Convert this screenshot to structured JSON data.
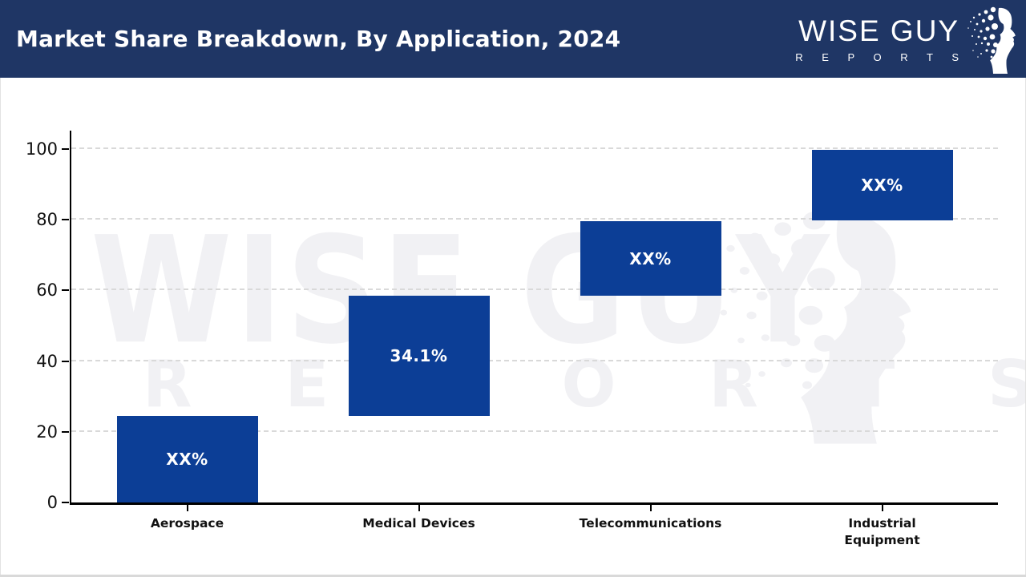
{
  "header": {
    "title": "Market Share Breakdown, By Application, 2024",
    "brand": {
      "wordmark": "WISE GUY",
      "reports": "R E P O R T S"
    }
  },
  "watermark": {
    "wordmark": "WISE GUY",
    "reports": "R E P O R T S"
  },
  "colors": {
    "header_bg": "#1f3665",
    "bar": "#0c3e96",
    "grid": "#d9d9d9",
    "watermark": "#f1f1f4",
    "bar_label": "#ffffff",
    "axis_text": "#111111"
  },
  "chart_data": {
    "type": "bar",
    "subtype": "floating-waterfall",
    "title": "Market Share Breakdown, By Application, 2024",
    "categories": [
      "Aerospace",
      "Medical Devices",
      "Telecommunications",
      "Industrial Equipment"
    ],
    "bars": [
      {
        "category": "Aerospace",
        "category_lines": [
          "Aerospace"
        ],
        "start": 0,
        "end": 24.5,
        "value": 24.5,
        "label": "XX%"
      },
      {
        "category": "Medical Devices",
        "category_lines": [
          "Medical Devices"
        ],
        "start": 24.5,
        "end": 58.6,
        "value": 34.1,
        "label": "34.1%"
      },
      {
        "category": "Telecommunications",
        "category_lines": [
          "Telecommunications"
        ],
        "start": 58.6,
        "end": 79.5,
        "value": 20.9,
        "label": "XX%"
      },
      {
        "category": "Industrial Equipment",
        "category_lines": [
          "Industrial",
          "Equipment"
        ],
        "start": 79.8,
        "end": 99.8,
        "value": 20.0,
        "label": "XX%"
      }
    ],
    "ylim": [
      0,
      100
    ],
    "yticks": [
      0,
      20,
      40,
      60,
      80,
      100
    ],
    "xlabel": "",
    "ylabel": "",
    "grid": "horizontal-dashed",
    "legend": "none",
    "bar_color": "#0c3e96"
  }
}
